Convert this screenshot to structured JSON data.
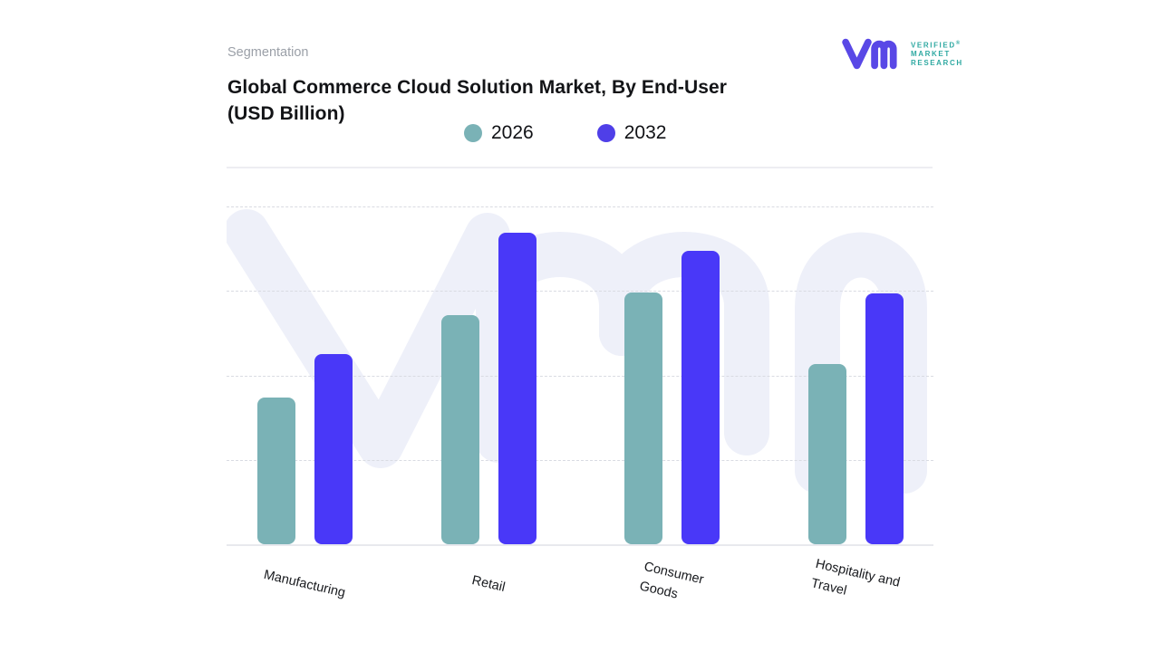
{
  "header": {
    "eyebrow": "Segmentation",
    "title_line1": "Global Commerce Cloud Solution Market, By End-User",
    "title_line2": "(USD Billion)"
  },
  "logo": {
    "lines": [
      "VERIFIED",
      "MARKET",
      "RESEARCH"
    ],
    "registered": "®",
    "mark_color": "#5948e6",
    "text_color": "#2fa9a2"
  },
  "colors": {
    "watermark": "#eef0f9",
    "series_2026": "#7ab2b6",
    "series_2032": "#4938f8",
    "legend_dot_2032": "#4f3fe8"
  },
  "chart_data": {
    "type": "bar",
    "title": "Global Commerce Cloud Solution Market, By End-User (USD Billion)",
    "categories": [
      "Manufacturing",
      "Retail",
      "Consumer Goods",
      "Hospitality and Travel"
    ],
    "tick_label_lines": [
      [
        "Manufacturing"
      ],
      [
        "Retail"
      ],
      [
        "Consumer",
        "Goods"
      ],
      [
        "Hospitality and",
        "Travel"
      ]
    ],
    "series": [
      {
        "name": "2026",
        "color": "#7ab2b6",
        "legend_dot_color": "#7ab2b6",
        "values": [
          43.2,
          67.5,
          74.1,
          53.1
        ]
      },
      {
        "name": "2032",
        "color": "#4938f8",
        "legend_dot_color": "#4f3fe8",
        "values": [
          56.0,
          91.7,
          86.4,
          73.9
        ]
      }
    ],
    "xlabel": "",
    "ylabel": "",
    "ylim": [
      0,
      100
    ],
    "value_unit": "percent of plot height; numeric y-axis labels not shown in source",
    "grid": "4 dashed horizontal gridlines, solid baseline",
    "legend_position": "top-center"
  }
}
